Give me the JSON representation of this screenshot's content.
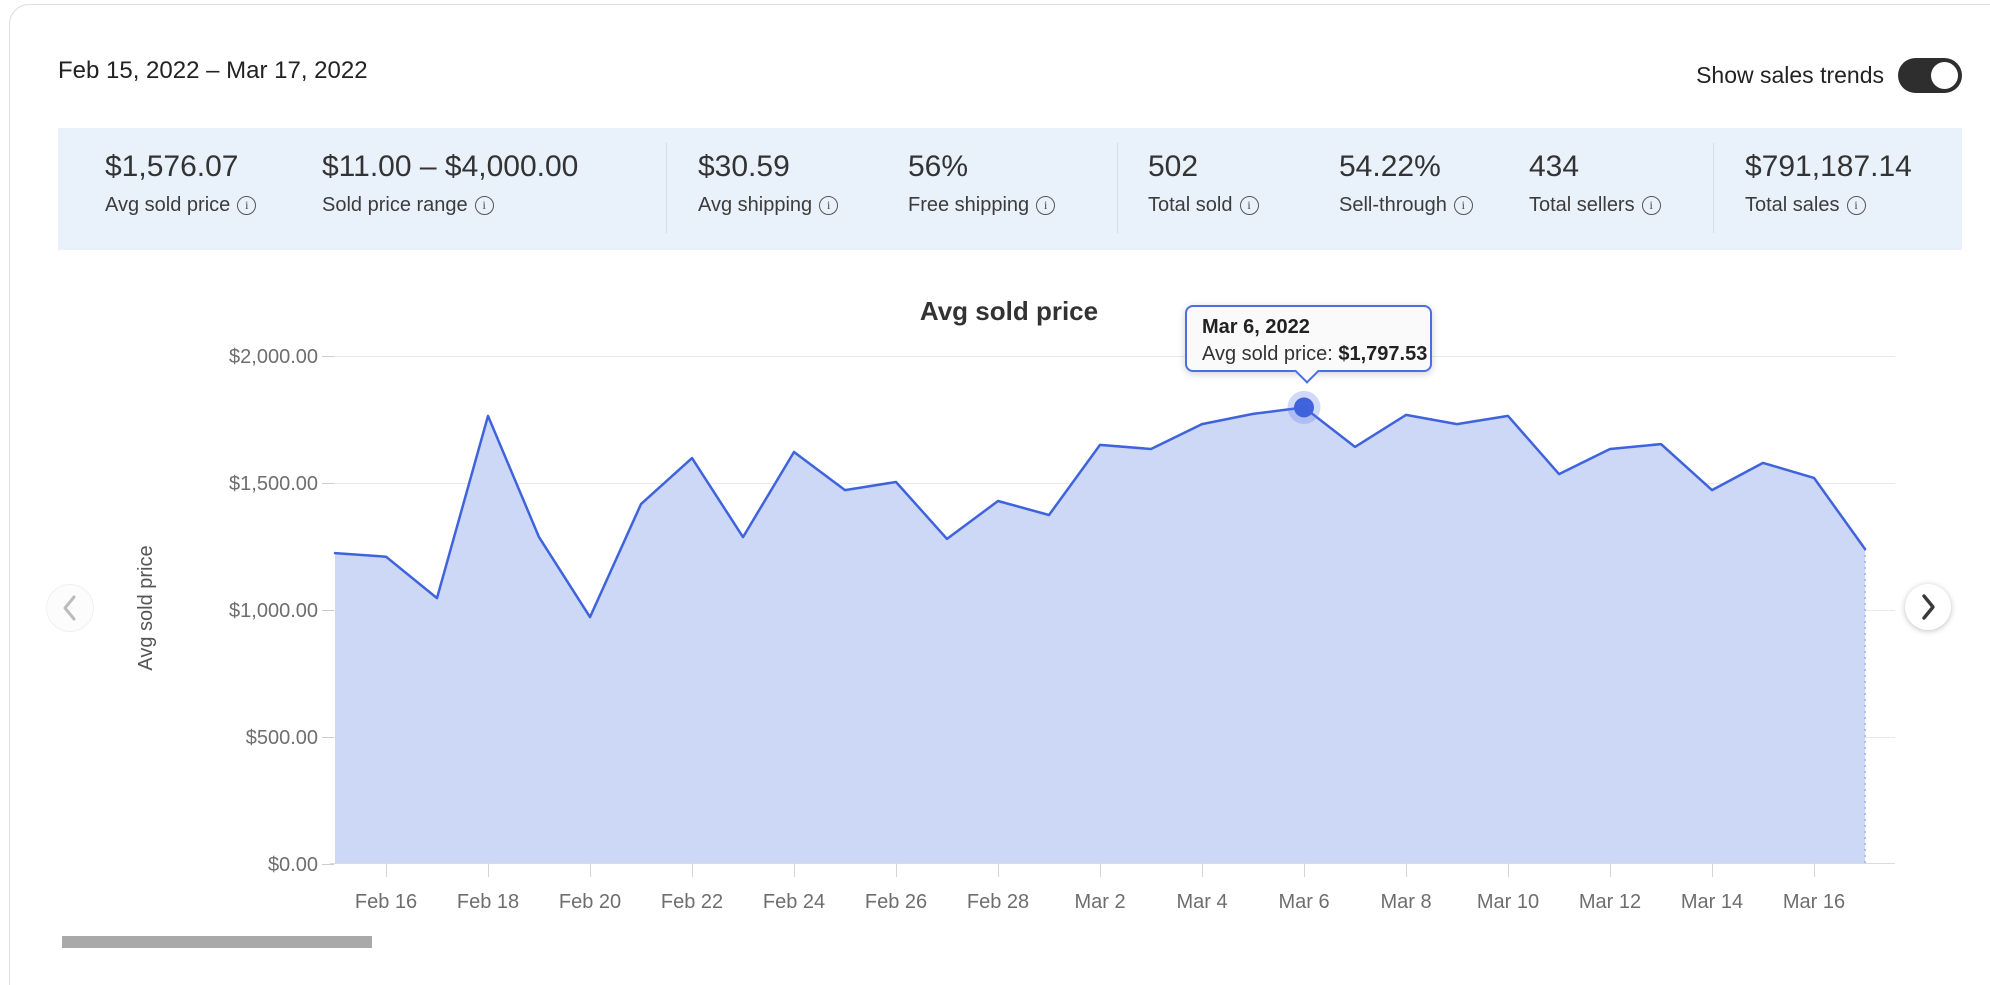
{
  "header": {
    "date_range": "Feb 15, 2022 – Mar 17, 2022",
    "toggle_label": "Show sales trends",
    "toggle_on": true
  },
  "stats": [
    {
      "value": "$1,576.07",
      "label": "Avg sold price"
    },
    {
      "value": "$11.00 – $4,000.00",
      "label": "Sold price range"
    },
    {
      "value": "$30.59",
      "label": "Avg shipping"
    },
    {
      "value": "56%",
      "label": "Free shipping"
    },
    {
      "value": "502",
      "label": "Total sold"
    },
    {
      "value": "54.22%",
      "label": "Sell-through"
    },
    {
      "value": "434",
      "label": "Total sellers"
    },
    {
      "value": "$791,187.14",
      "label": "Total sales"
    }
  ],
  "chart_data": {
    "type": "area",
    "title": "Avg sold price",
    "ylabel": "Avg sold price",
    "x": [
      "Feb 15",
      "Feb 16",
      "Feb 17",
      "Feb 18",
      "Feb 19",
      "Feb 20",
      "Feb 21",
      "Feb 22",
      "Feb 23",
      "Feb 24",
      "Feb 25",
      "Feb 26",
      "Feb 27",
      "Feb 28",
      "Mar 1",
      "Mar 2",
      "Mar 3",
      "Mar 4",
      "Mar 5",
      "Mar 6",
      "Mar 7",
      "Mar 8",
      "Mar 9",
      "Mar 10",
      "Mar 11",
      "Mar 12",
      "Mar 13",
      "Mar 14",
      "Mar 15",
      "Mar 16",
      "Mar 17"
    ],
    "values": [
      1224,
      1210,
      1047,
      1764,
      1287,
      972,
      1417,
      1598,
      1287,
      1622,
      1472,
      1504,
      1280,
      1429,
      1374,
      1650,
      1634,
      1732,
      1772,
      1797.53,
      1642,
      1768,
      1732,
      1764,
      1535,
      1634,
      1653,
      1472,
      1579,
      1520,
      1240
    ],
    "x_tick_labels": [
      "Feb 16",
      "Feb 18",
      "Feb 20",
      "Feb 22",
      "Feb 24",
      "Feb 26",
      "Feb 28",
      "Mar 2",
      "Mar 4",
      "Mar 6",
      "Mar 8",
      "Mar 10",
      "Mar 12",
      "Mar 14",
      "Mar 16"
    ],
    "y_ticks": [
      {
        "value": 0,
        "label": "$0.00"
      },
      {
        "value": 500,
        "label": "$500.00"
      },
      {
        "value": 1000,
        "label": "$1,000.00"
      },
      {
        "value": 1500,
        "label": "$1,500.00"
      },
      {
        "value": 2000,
        "label": "$2,000.00"
      }
    ],
    "ylim": [
      0,
      2000
    ],
    "grid": "horizontal",
    "legend": "none",
    "line_color": "#3E63DC",
    "fill_color": "#CDD7F6"
  },
  "tooltip": {
    "date": "Mar 6, 2022",
    "label": "Avg sold price: ",
    "value": "$1,797.53",
    "point_index": 19,
    "point_value": 1797.53
  }
}
